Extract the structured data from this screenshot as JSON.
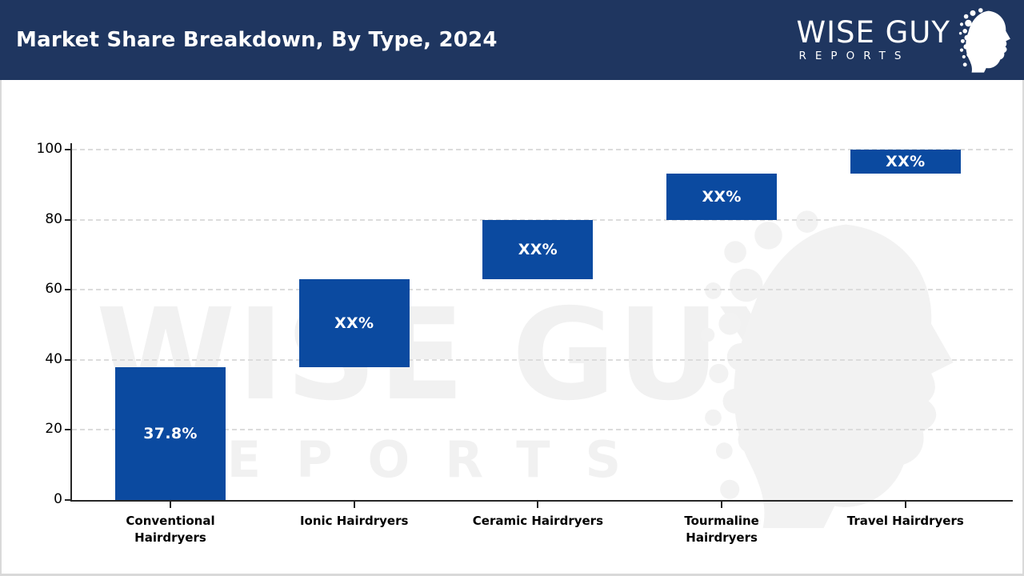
{
  "header": {
    "title": "Market Share Breakdown, By Type, 2024",
    "logo": {
      "primary": "WISE GUY",
      "secondary": "REPORTS"
    }
  },
  "watermark": {
    "primary": "WISE GUY",
    "secondary": "REPORTS"
  },
  "chart_data": {
    "type": "bar",
    "subtype": "waterfall",
    "title": "Market Share Breakdown, By Type, 2024",
    "categories": [
      "Conventional Hairdryers",
      "Ionic Hairdryers",
      "Ceramic Hairdryers",
      "Tourmaline Hairdryers",
      "Travel Hairdryers"
    ],
    "segments": [
      {
        "category": "Conventional Hairdryers",
        "start": 0,
        "end": 37.8,
        "label": "37.8%"
      },
      {
        "category": "Ionic Hairdryers",
        "start": 37.8,
        "end": 63.0,
        "label": "XX%"
      },
      {
        "category": "Ceramic Hairdryers",
        "start": 63.0,
        "end": 79.8,
        "label": "XX%"
      },
      {
        "category": "Tourmaline Hairdryers",
        "start": 79.8,
        "end": 93.2,
        "label": "XX%"
      },
      {
        "category": "Travel Hairdryers",
        "start": 93.2,
        "end": 100,
        "label": "XX%"
      }
    ],
    "xlabel": "",
    "ylabel": "",
    "ylim": [
      0,
      100
    ],
    "yticks": [
      0,
      20,
      40,
      60,
      80,
      100
    ],
    "grid": true,
    "legend": false,
    "colors": {
      "bar": "#0b4aa0",
      "bar_label": "#ffffff",
      "axis": "#262626",
      "gridline": "#dcdcdc",
      "header_bg": "#1f3660",
      "watermark": "#f1f1f1"
    }
  }
}
